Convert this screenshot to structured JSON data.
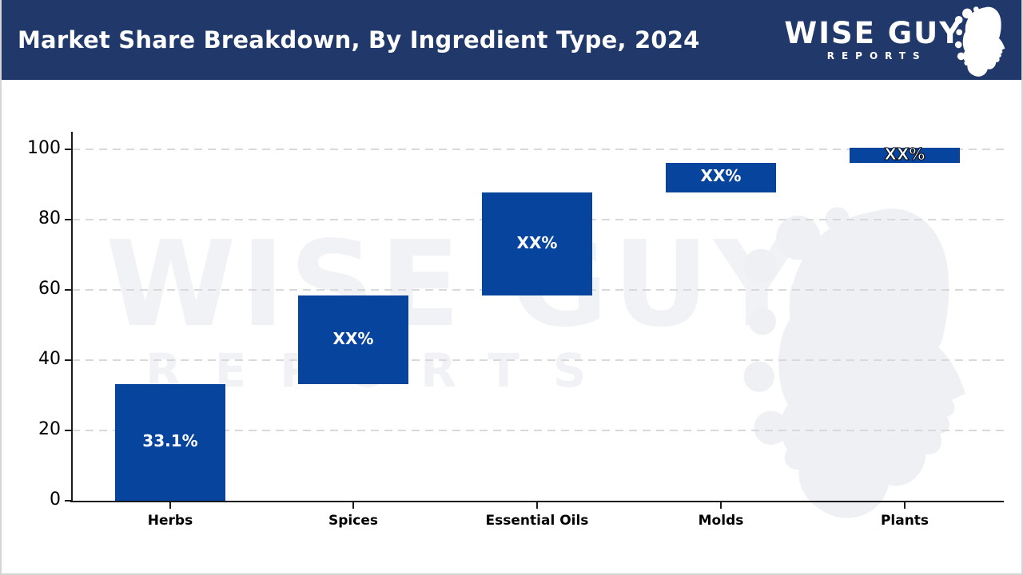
{
  "header": {
    "title": "Market Share Breakdown, By Ingredient Type, 2024",
    "logo": {
      "line1": "WISE GUY",
      "line2": "REPORTS"
    }
  },
  "watermark": {
    "line1": "WISE GUY",
    "line2": "REPORTS"
  },
  "chart_data": {
    "type": "bar",
    "variant": "waterfall",
    "title": "Market Share Breakdown, By Ingredient Type, 2024",
    "xlabel": "",
    "ylabel": "",
    "categories": [
      "Herbs",
      "Spices",
      "Essential Oils",
      "Molds",
      "Plants"
    ],
    "segments": [
      {
        "category": "Herbs",
        "start": 0,
        "end": 33.1,
        "label": "33.1%"
      },
      {
        "category": "Spices",
        "start": 33.1,
        "end": 58.3,
        "label": "XX%"
      },
      {
        "category": "Essential Oils",
        "start": 58.3,
        "end": 87.8,
        "label": "XX%"
      },
      {
        "category": "Molds",
        "start": 87.8,
        "end": 96.1,
        "label": "XX%"
      },
      {
        "category": "Plants",
        "start": 96.1,
        "end": 100.4,
        "label": "XX%"
      }
    ],
    "yticks": [
      0,
      20,
      40,
      60,
      80,
      100
    ],
    "ylim": [
      0,
      105
    ],
    "grid": "horizontal-dashed",
    "legend": "none",
    "colors": {
      "bar": "#07449e",
      "bar_label": "#ffffff",
      "axis": "#1a1a1a",
      "gridline": "#d9d9d9",
      "header_bg": "#21386b",
      "header_text": "#ffffff",
      "watermark": "#f1f2f5"
    }
  }
}
